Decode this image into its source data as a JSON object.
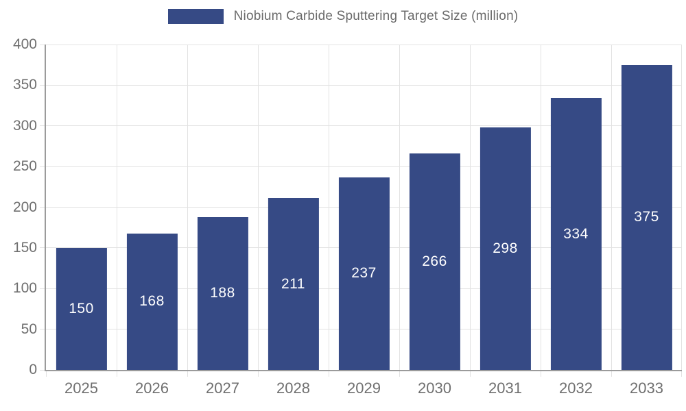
{
  "legend": {
    "label": "Niobium Carbide Sputtering Target Size (million)"
  },
  "chart_data": {
    "type": "bar",
    "title": "Niobium Carbide Sputtering Target Size (million)",
    "categories": [
      "2025",
      "2026",
      "2027",
      "2028",
      "2029",
      "2030",
      "2031",
      "2032",
      "2033"
    ],
    "values": [
      150,
      168,
      188,
      211,
      237,
      266,
      298,
      334,
      375
    ],
    "xlabel": "",
    "ylabel": "",
    "ylim": [
      0,
      400
    ],
    "ytick_step": 50,
    "yticks": [
      0,
      50,
      100,
      150,
      200,
      250,
      300,
      350,
      400
    ],
    "grid": true,
    "legend_position": "top-center",
    "value_labels": "inside-center-white",
    "colors": {
      "bar": "#364a85",
      "value_label": "#ffffff",
      "tick_label": "#6f6f6f",
      "legend_text": "#6a6a6a",
      "grid": "#e2e2e2",
      "axis": "#9b9b9b",
      "background": "#ffffff"
    }
  }
}
